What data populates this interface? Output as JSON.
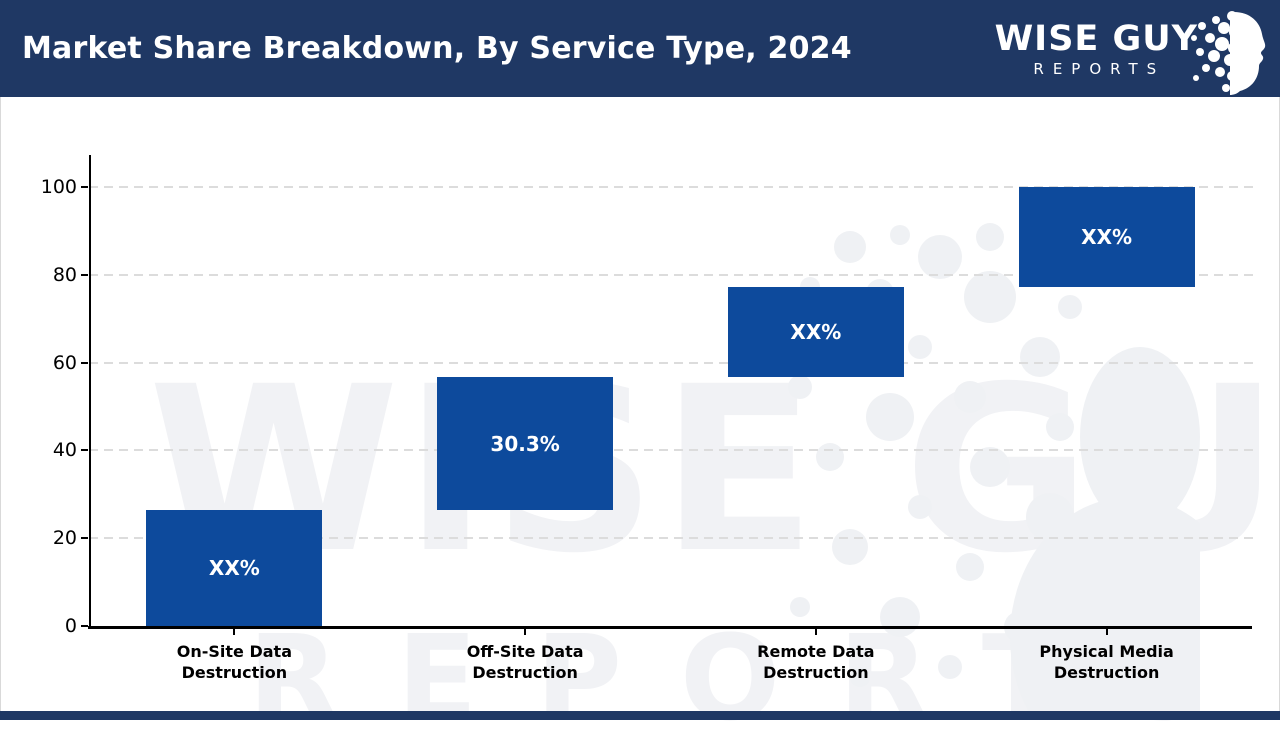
{
  "header": {
    "title": "Market Share Breakdown, By Service Type, 2024",
    "brand": {
      "name_line1": "WISE GUY",
      "name_line2": "REPORTS"
    }
  },
  "watermark": {
    "line1": "WISE GUY",
    "line2": "REPORTS"
  },
  "chart_data": {
    "type": "bar",
    "subtype": "floating-waterfall",
    "title": "Market Share Breakdown, By Service Type, 2024",
    "categories": [
      "On-Site Data Destruction",
      "Off-Site Data Destruction",
      "Remote Data Destruction",
      "Physical Media Destruction"
    ],
    "category_lines": [
      [
        "On-Site Data",
        "Destruction"
      ],
      [
        "Off-Site Data",
        "Destruction"
      ],
      [
        "Remote Data",
        "Destruction"
      ],
      [
        "Physical Media",
        "Destruction"
      ]
    ],
    "segments": [
      {
        "start": 0,
        "end": 26.4,
        "label": "XX%"
      },
      {
        "start": 26.4,
        "end": 56.7,
        "label": "30.3%"
      },
      {
        "start": 56.7,
        "end": 77.3,
        "label": "XX%"
      },
      {
        "start": 77.3,
        "end": 100,
        "label": "XX%"
      }
    ],
    "values": [
      26.4,
      30.3,
      20.6,
      22.7
    ],
    "unit": "%",
    "yticks": [
      0,
      20,
      40,
      60,
      80,
      100
    ],
    "ylim": [
      0,
      107
    ],
    "grid": "horizontal-dashed",
    "legend": "none",
    "bar_color": "#0d4a9c",
    "bar_label_color": "#ffffff"
  },
  "colors": {
    "header_bg": "#1f3864",
    "footer_bg": "#1f3864",
    "axis": "#000000",
    "gridline": "#dcdcdc",
    "watermark": "#f1f2f5"
  }
}
